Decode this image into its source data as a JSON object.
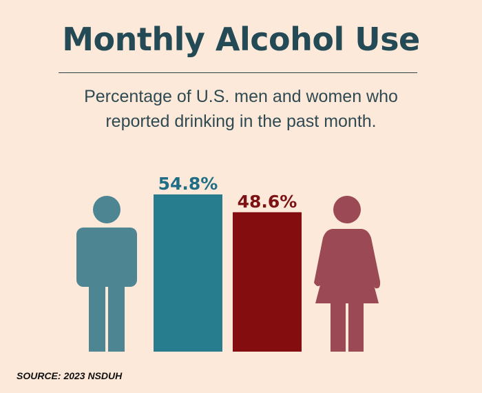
{
  "header": {
    "title": "Monthly Alcohol Use",
    "subtitle_line1": "Percentage of U.S. men and women who",
    "subtitle_line2": "reported drinking in the past month."
  },
  "footer": {
    "source": "SOURCE: 2023 NSDUH"
  },
  "chart_data": {
    "type": "bar",
    "title": "Monthly Alcohol Use",
    "subtitle": "Percentage of U.S. men and women who reported drinking in the past month.",
    "categories": [
      "Men",
      "Women"
    ],
    "values": [
      54.8,
      48.6
    ],
    "labels": [
      "54.8%",
      "48.6%"
    ],
    "colors": [
      "#277c8e",
      "#830d0f"
    ],
    "label_colors": [
      "#1f6e86",
      "#7d1214"
    ],
    "icons": [
      "man-icon",
      "woman-icon"
    ],
    "icon_colors": [
      "#4e8592",
      "#9b4a55"
    ],
    "legend": "none",
    "grid": false,
    "xlabel": "",
    "ylabel": "",
    "ylim": [
      0,
      54.8
    ]
  }
}
